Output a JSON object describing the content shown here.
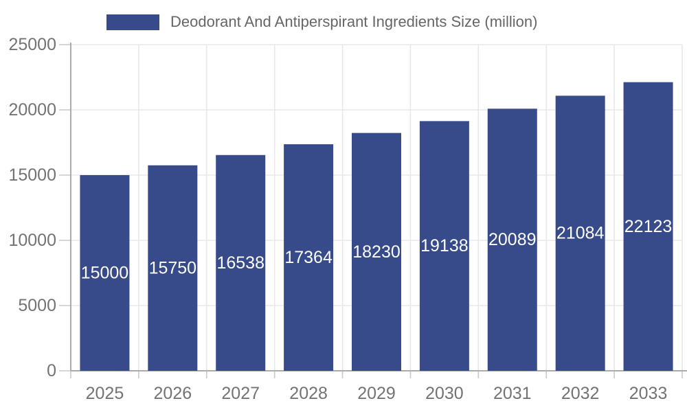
{
  "legend": {
    "label": "Deodorant And Antiperspirant Ingredients Size (million)"
  },
  "chart_data": {
    "type": "bar",
    "title": "Deodorant And Antiperspirant Ingredients Size (million)",
    "categories": [
      "2025",
      "2026",
      "2027",
      "2028",
      "2029",
      "2030",
      "2031",
      "2032",
      "2033"
    ],
    "values": [
      15000,
      15750,
      16538,
      17364,
      18230,
      19138,
      20089,
      21084,
      22123
    ],
    "series": [
      {
        "name": "Deodorant And Antiperspirant Ingredients Size (million)",
        "values": [
          15000,
          15750,
          16538,
          17364,
          18230,
          19138,
          20089,
          21084,
          22123
        ]
      }
    ],
    "xlabel": "",
    "ylabel": "",
    "ylim": [
      0,
      25000
    ],
    "yticks": [
      0,
      5000,
      10000,
      15000,
      20000,
      25000
    ],
    "grid": true,
    "legend_position": "top",
    "value_labels_shown": true,
    "colors": {
      "bar": "#374a8a",
      "grid": "#e8e8e8",
      "axis": "#ababab",
      "tick": "#c9c9c9",
      "axis_label_text": "#737373",
      "value_label_text": "#ffffff",
      "legend_text": "#666666",
      "background": "#ffffff"
    }
  }
}
